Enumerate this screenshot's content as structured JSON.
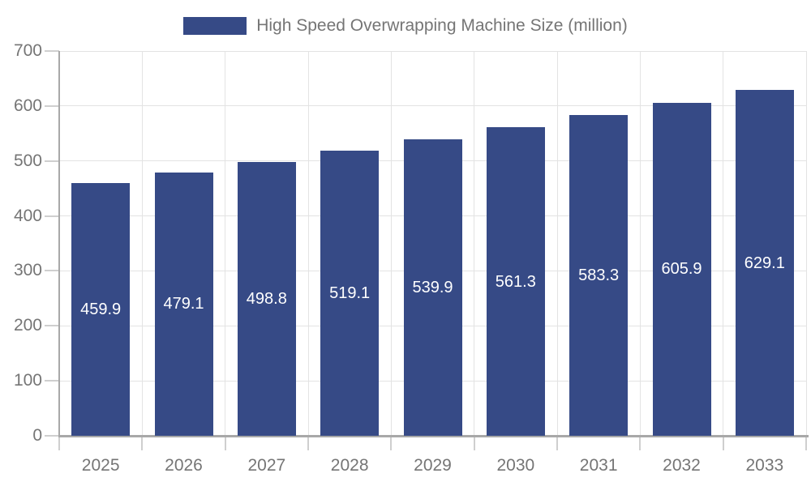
{
  "legend": {
    "label": "High Speed Overwrapping Machine Size (million)"
  },
  "chart_data": {
    "type": "bar",
    "title": "High Speed Overwrapping Machine Size (million)",
    "categories": [
      "2025",
      "2026",
      "2027",
      "2028",
      "2029",
      "2030",
      "2031",
      "2032",
      "2033"
    ],
    "values": [
      459.9,
      479.1,
      498.8,
      519.1,
      539.9,
      561.3,
      583.3,
      605.9,
      629.1
    ],
    "value_labels": [
      "459.9",
      "479.1",
      "498.8",
      "519.1",
      "539.9",
      "561.3",
      "583.3",
      "605.9",
      "629.1"
    ],
    "xlabel": "",
    "ylabel": "",
    "ylim": [
      0,
      700
    ],
    "yticks": [
      0,
      100,
      200,
      300,
      400,
      500,
      600,
      700
    ],
    "grid": true,
    "legend_position": "top-center",
    "colors": {
      "bar": "#364a86",
      "value_label": "#ffffff",
      "axis_text": "#757575",
      "gridline": "#e3e3e3",
      "tick": "#cfcfcf",
      "axis_line": "#a8a8a8",
      "background": "#ffffff"
    }
  }
}
